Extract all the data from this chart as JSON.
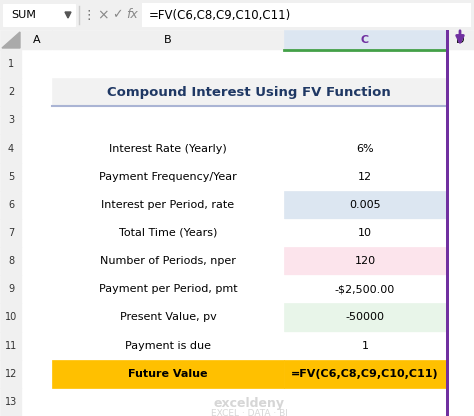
{
  "title": "Compound Interest Using FV Function",
  "formula_bar_text": "=FV(C6,C8,C9,C10,C11)",
  "name_box": "SUM",
  "rows": [
    {
      "label": "Interest Rate (Yearly)",
      "value": "6%",
      "label_bg": "#ffffff",
      "value_bg": "#ffffff",
      "border_color": null
    },
    {
      "label": "Payment Frequency/Year",
      "value": "12",
      "label_bg": "#ffffff",
      "value_bg": "#ffffff",
      "border_color": null
    },
    {
      "label": "Interest per Period, rate",
      "value": "0.005",
      "label_bg": "#ffffff",
      "value_bg": "#dce6f1",
      "border_color": "#4472c4"
    },
    {
      "label": "Total Time (Years)",
      "value": "10",
      "label_bg": "#ffffff",
      "value_bg": "#ffffff",
      "border_color": null
    },
    {
      "label": "Number of Periods, nper",
      "value": "120",
      "label_bg": "#ffffff",
      "value_bg": "#fce4ec",
      "border_color": "#e53935"
    },
    {
      "label": "Payment per Period, pmt",
      "value": "-$2,500.00",
      "label_bg": "#ffffff",
      "value_bg": "#ffffff",
      "border_color": null
    },
    {
      "label": "Present Value, pv",
      "value": "-50000",
      "label_bg": "#ffffff",
      "value_bg": "#e8f5e9",
      "border_color": "#43a047"
    },
    {
      "label": "Payment is due",
      "value": "1",
      "label_bg": "#ffffff",
      "value_bg": "#ffffff",
      "border_color": "#e53935"
    },
    {
      "label": "Future Value",
      "value": "=FV(C6,C8,C9,C10,C11)",
      "label_bg": "#ffc000",
      "value_bg": "#ffc000",
      "border_color": "#7030a0"
    }
  ],
  "header_row_bg": "#e8eef7",
  "bg_color": "#ffffff",
  "formula_border_color": "#7030a0",
  "title_color": "#1f3864",
  "title_bg": "#f2f2f2",
  "col_c_header_bg": "#dce6f1",
  "watermark": "exceldeny",
  "sub_watermark": "EXCEL · DATA · BI",
  "toolbar_bg": "#f0f0f0",
  "grid_color": "#d0d0d0",
  "row_num_bg": "#f0f0f0"
}
